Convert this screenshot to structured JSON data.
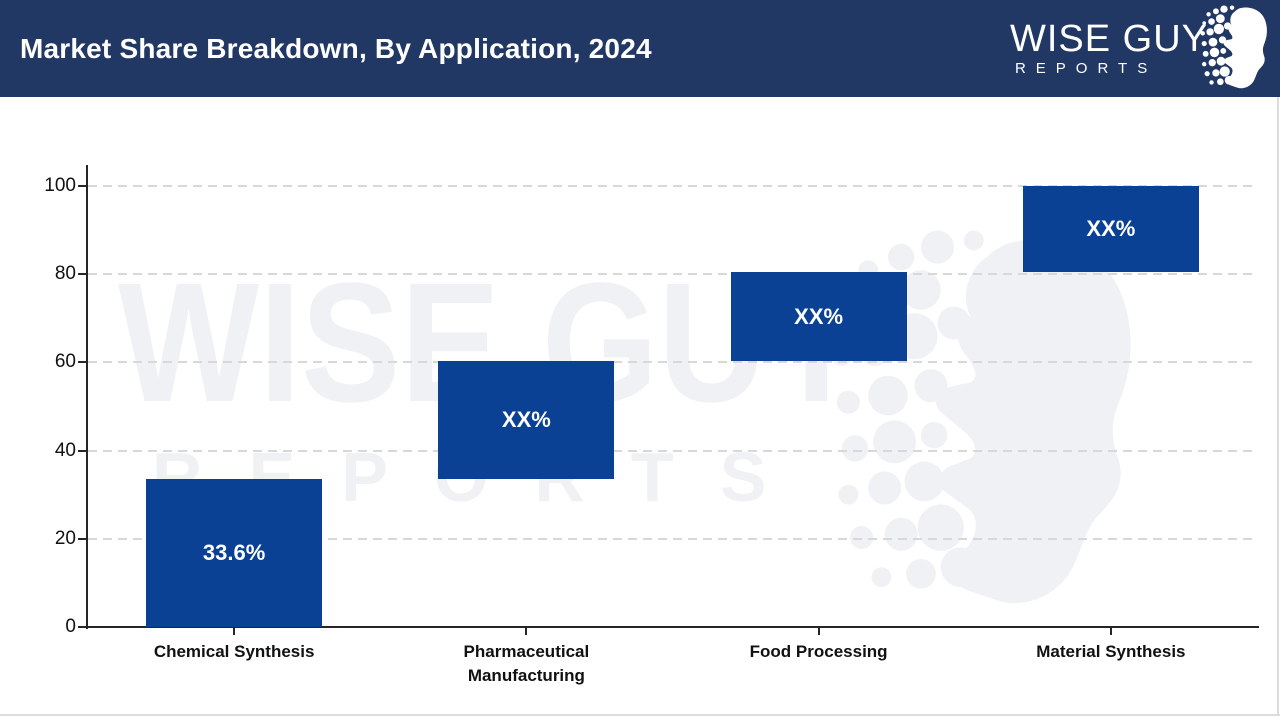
{
  "header": {
    "title": "Market Share Breakdown, By Application, 2024",
    "bg_color": "#213764",
    "logo": {
      "line1": "WISE GUY",
      "line2": "REPORTS"
    }
  },
  "watermark": {
    "line1": "WISE GUY",
    "line2": "REPORTS"
  },
  "chart_data": {
    "type": "bar",
    "subtype": "waterfall",
    "title": "Market Share Breakdown, By Application, 2024",
    "categories": [
      "Chemical Synthesis",
      "Pharmaceutical Manufacturing",
      "Food Processing",
      "Material Synthesis"
    ],
    "bars": [
      {
        "category": "Chemical Synthesis",
        "start": 0,
        "end": 33.6,
        "label": "33.6%"
      },
      {
        "category": "Pharmaceutical Manufacturing",
        "start": 33.6,
        "end": 60.3,
        "label": "XX%"
      },
      {
        "category": "Food Processing",
        "start": 60.3,
        "end": 80.4,
        "label": "XX%"
      },
      {
        "category": "Material Synthesis",
        "start": 80.4,
        "end": 100,
        "label": "XX%"
      }
    ],
    "y_ticks": [
      0,
      20,
      40,
      60,
      80,
      100
    ],
    "ylim": [
      0,
      100
    ],
    "xlabel": "",
    "ylabel": "",
    "bar_color": "#0A4194",
    "grid_color": "#d8d8d8",
    "axis_color": "#262626",
    "grid": "horizontal-dashed",
    "legend": "none"
  }
}
